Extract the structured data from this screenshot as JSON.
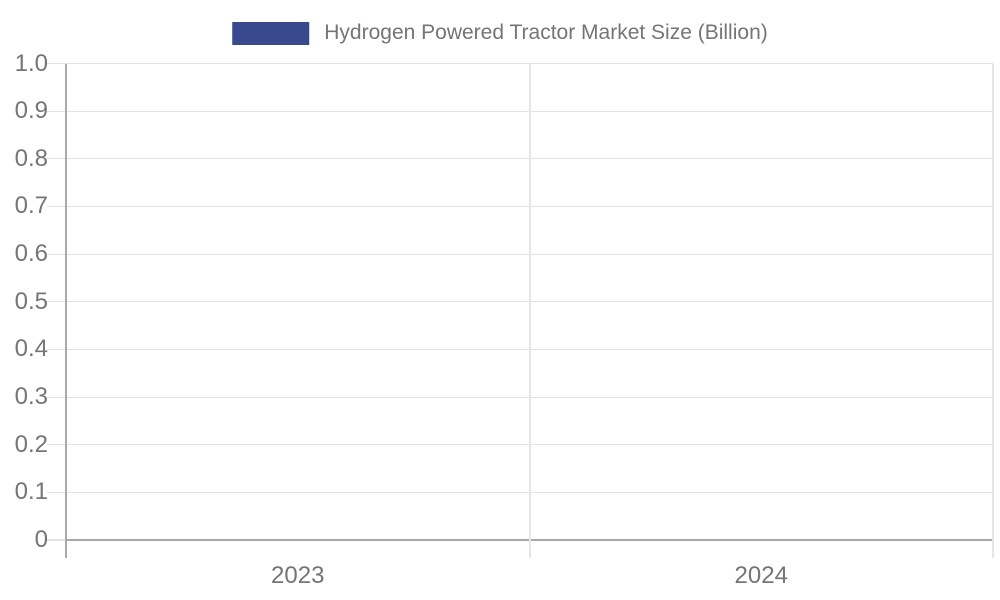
{
  "legend": {
    "label": "Hydrogen Powered Tractor Market Size (Billion)",
    "swatch_color": "#39498D"
  },
  "colors": {
    "background": "#ffffff",
    "axis_line": "#a9a9a9",
    "gridline": "#e2e2e2",
    "boundary_line": "#e6e6e6",
    "tick_text": "#757575",
    "legend_text": "#757575",
    "series": "#39498D"
  },
  "chart_data": {
    "type": "bar",
    "title": "Hydrogen Powered Tractor Market Size (Billion)",
    "categories": [
      "2023",
      "2024"
    ],
    "series": [
      {
        "name": "Hydrogen Powered Tractor Market Size (Billion)",
        "color": "#39498D",
        "values": [
          null,
          null
        ]
      }
    ],
    "bars_rendered": false,
    "xlabel": "",
    "ylabel": "",
    "ylim": [
      0,
      1.0
    ],
    "y_ticks": [
      0,
      0.1,
      0.2,
      0.3,
      0.4,
      0.5,
      0.6,
      0.7,
      0.8,
      0.9,
      1.0
    ],
    "y_tick_labels": [
      "0",
      "0.1",
      "0.2",
      "0.3",
      "0.4",
      "0.5",
      "0.6",
      "0.7",
      "0.8",
      "0.9",
      "1.0"
    ],
    "grid": true,
    "legend_position": "top-center"
  }
}
